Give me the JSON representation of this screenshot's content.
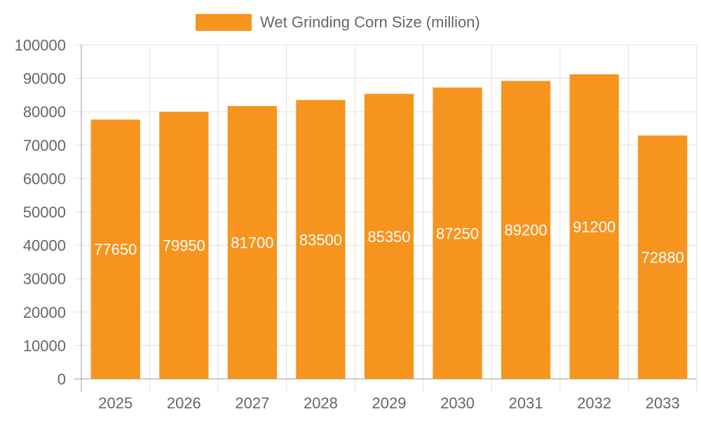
{
  "chart_data": {
    "type": "bar",
    "categories": [
      "2025",
      "2026",
      "2027",
      "2028",
      "2029",
      "2030",
      "2031",
      "2032",
      "2033"
    ],
    "series": [
      {
        "name": "Wet Grinding Corn Size (million)",
        "values": [
          77650,
          79950,
          81700,
          83500,
          85350,
          87250,
          89200,
          91200,
          72880
        ],
        "color": "#f7941e"
      }
    ],
    "ylim": [
      0,
      100000
    ],
    "yticks": [
      "0",
      "10000",
      "20000",
      "30000",
      "40000",
      "50000",
      "60000",
      "70000",
      "80000",
      "90000",
      "100000"
    ],
    "grid": true,
    "legend_position": "top-center",
    "data_labels": "inside-middle",
    "data_label_color": "#ffffff",
    "title": "",
    "xlabel": "",
    "ylabel": ""
  }
}
